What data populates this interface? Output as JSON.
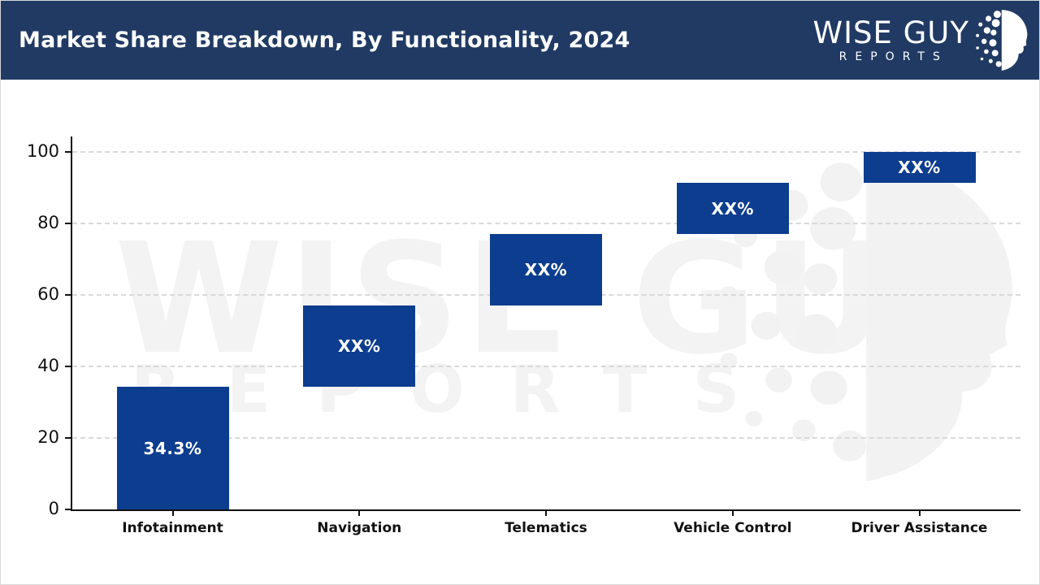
{
  "header": {
    "title": "Market Share Breakdown, By Functionality, 2024",
    "bg_color": "#203a64",
    "logo": {
      "line1": "WISE GUY",
      "line2": "REPORTS"
    }
  },
  "watermark": {
    "line1": "WISE GUY",
    "line2": "REPORTS"
  },
  "chart_data": {
    "type": "bar",
    "subtype": "waterfall",
    "title": "Market Share Breakdown, By Functionality, 2024",
    "categories": [
      "Infotainment",
      "Navigation",
      "Telematics",
      "Vehicle Control",
      "Driver Assistance"
    ],
    "segments": [
      {
        "category": "Infotainment",
        "start": 0,
        "end": 34.3,
        "label": "34.3%"
      },
      {
        "category": "Navigation",
        "start": 34.3,
        "end": 57.0,
        "label": "XX%"
      },
      {
        "category": "Telematics",
        "start": 57.0,
        "end": 77.0,
        "label": "XX%"
      },
      {
        "category": "Vehicle Control",
        "start": 77.0,
        "end": 91.4,
        "label": "XX%"
      },
      {
        "category": "Driver Assistance",
        "start": 91.4,
        "end": 100.0,
        "label": "XX%"
      }
    ],
    "xlabel": "",
    "ylabel": "",
    "y_ticks": [
      0,
      20,
      40,
      60,
      80,
      100
    ],
    "ylim": [
      0,
      104
    ],
    "grid": true,
    "legend": false,
    "bar_color": "#0c3d8f",
    "bar_label_color": "#ffffff",
    "gridline_color": "#d9d9d9",
    "axis_color": "#111111"
  }
}
